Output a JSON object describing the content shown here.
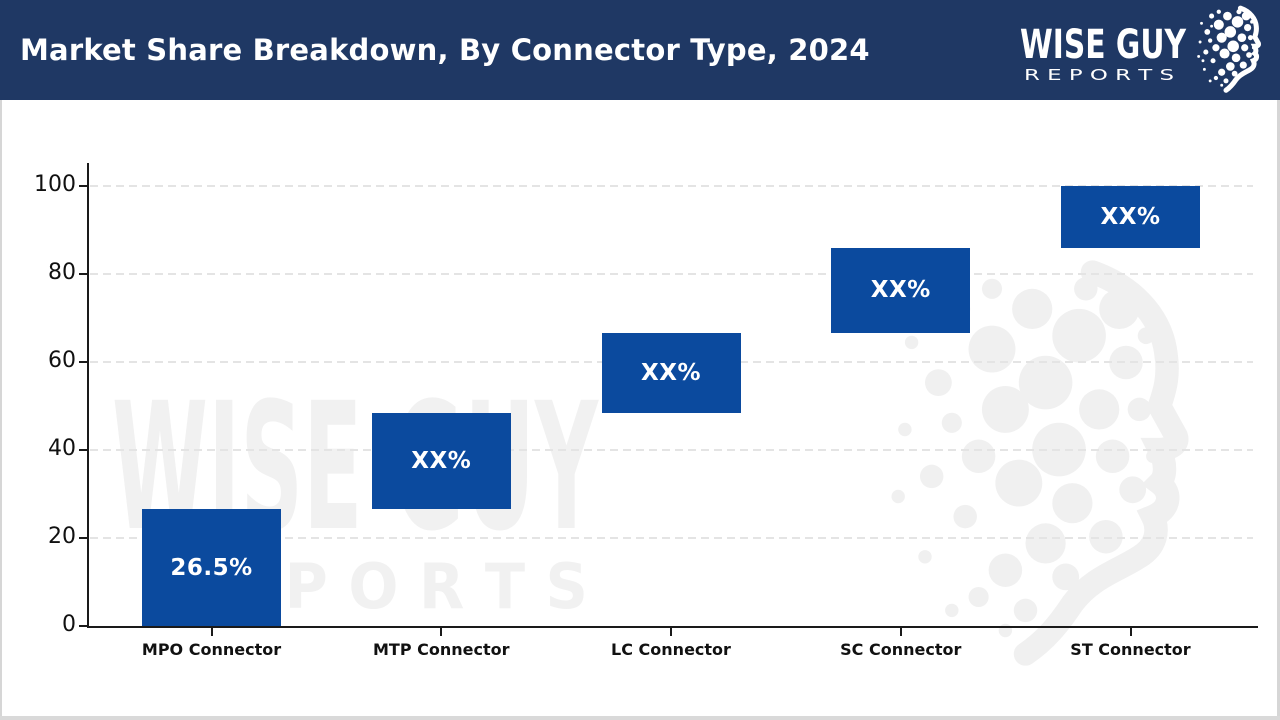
{
  "header": {
    "title": "Market Share Breakdown, By Connector Type, 2024",
    "logo": {
      "line1": "WISE GUY",
      "line2": "R E P O R T S"
    }
  },
  "watermark": {
    "line1": "WISE GUY",
    "line2": "R E P O R T S"
  },
  "colors": {
    "header_bg": "#1f3864",
    "bar": "#0b4a9e",
    "bar_label": "#ffffff",
    "gridline": "#e4e4e4",
    "axis": "#1a1a1a",
    "watermark": "#f1f1f1"
  },
  "chart_data": {
    "type": "bar",
    "subtype": "waterfall",
    "title": "Market Share Breakdown, By Connector Type, 2024",
    "categories": [
      "MPO Connector",
      "MTP Connector",
      "LC Connector",
      "SC Connector",
      "ST Connector"
    ],
    "segments": [
      {
        "category": "MPO Connector",
        "start": 0,
        "end": 26.5,
        "value": 26.5,
        "label": "26.5%"
      },
      {
        "category": "MTP Connector",
        "start": 26.5,
        "end": 48.5,
        "value": 22,
        "label": "XX%"
      },
      {
        "category": "LC Connector",
        "start": 48.5,
        "end": 66.5,
        "value": 18,
        "label": "XX%"
      },
      {
        "category": "SC Connector",
        "start": 66.5,
        "end": 86,
        "value": 19.5,
        "label": "XX%"
      },
      {
        "category": "ST Connector",
        "start": 86,
        "end": 100,
        "value": 14,
        "label": "XX%"
      }
    ],
    "yticks": [
      0,
      20,
      40,
      60,
      80,
      100
    ],
    "ylim": [
      0,
      105
    ],
    "xlabel": "",
    "ylabel": "",
    "legend": "none",
    "grid": "horizontal-dashed"
  }
}
